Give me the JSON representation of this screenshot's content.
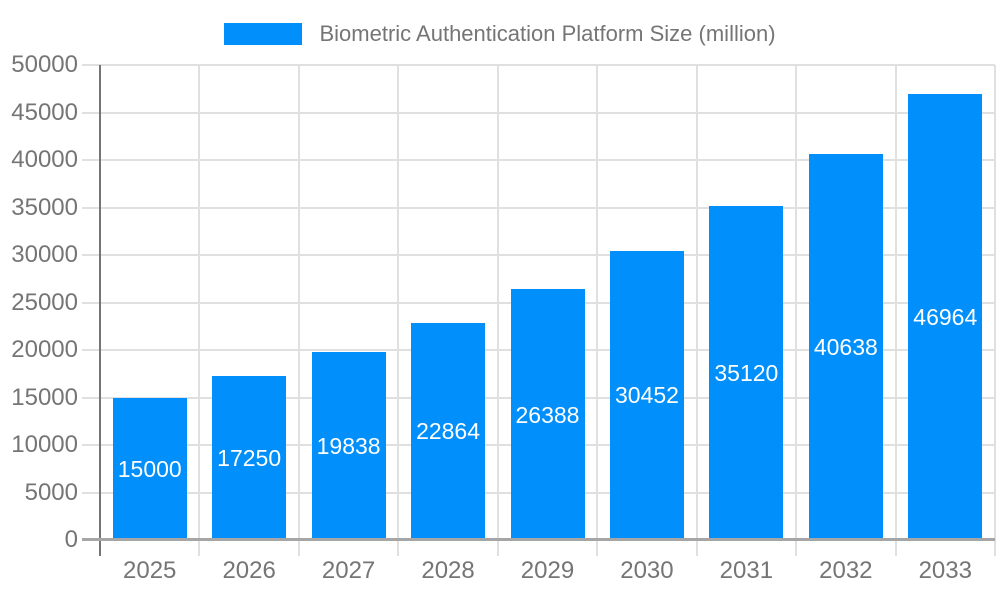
{
  "chart_data": {
    "type": "bar",
    "title": "Biometric Authentication Platform Size (million)",
    "legend": {
      "position": "top",
      "entries": [
        "Biometric Authentication Platform Size (million)"
      ]
    },
    "categories": [
      "2025",
      "2026",
      "2027",
      "2028",
      "2029",
      "2030",
      "2031",
      "2032",
      "2033"
    ],
    "values": [
      15000,
      17250,
      19838,
      22864,
      26388,
      30452,
      35120,
      40638,
      46964
    ],
    "xlabel": "",
    "ylabel": "",
    "ylim": [
      0,
      50000
    ],
    "ytick_step": 5000,
    "ytick_labels": [
      "0",
      "5000",
      "10000",
      "15000",
      "20000",
      "25000",
      "30000",
      "35000",
      "40000",
      "45000",
      "50000"
    ],
    "grid": true,
    "colors": {
      "bar": "#008FFB",
      "value_label": "#ffffff",
      "axis_text": "#757575",
      "gridline": "#e0e0e0",
      "y_axis_line": "#757575",
      "x_axis_line": "#a6a6a6",
      "background": "#ffffff"
    }
  }
}
